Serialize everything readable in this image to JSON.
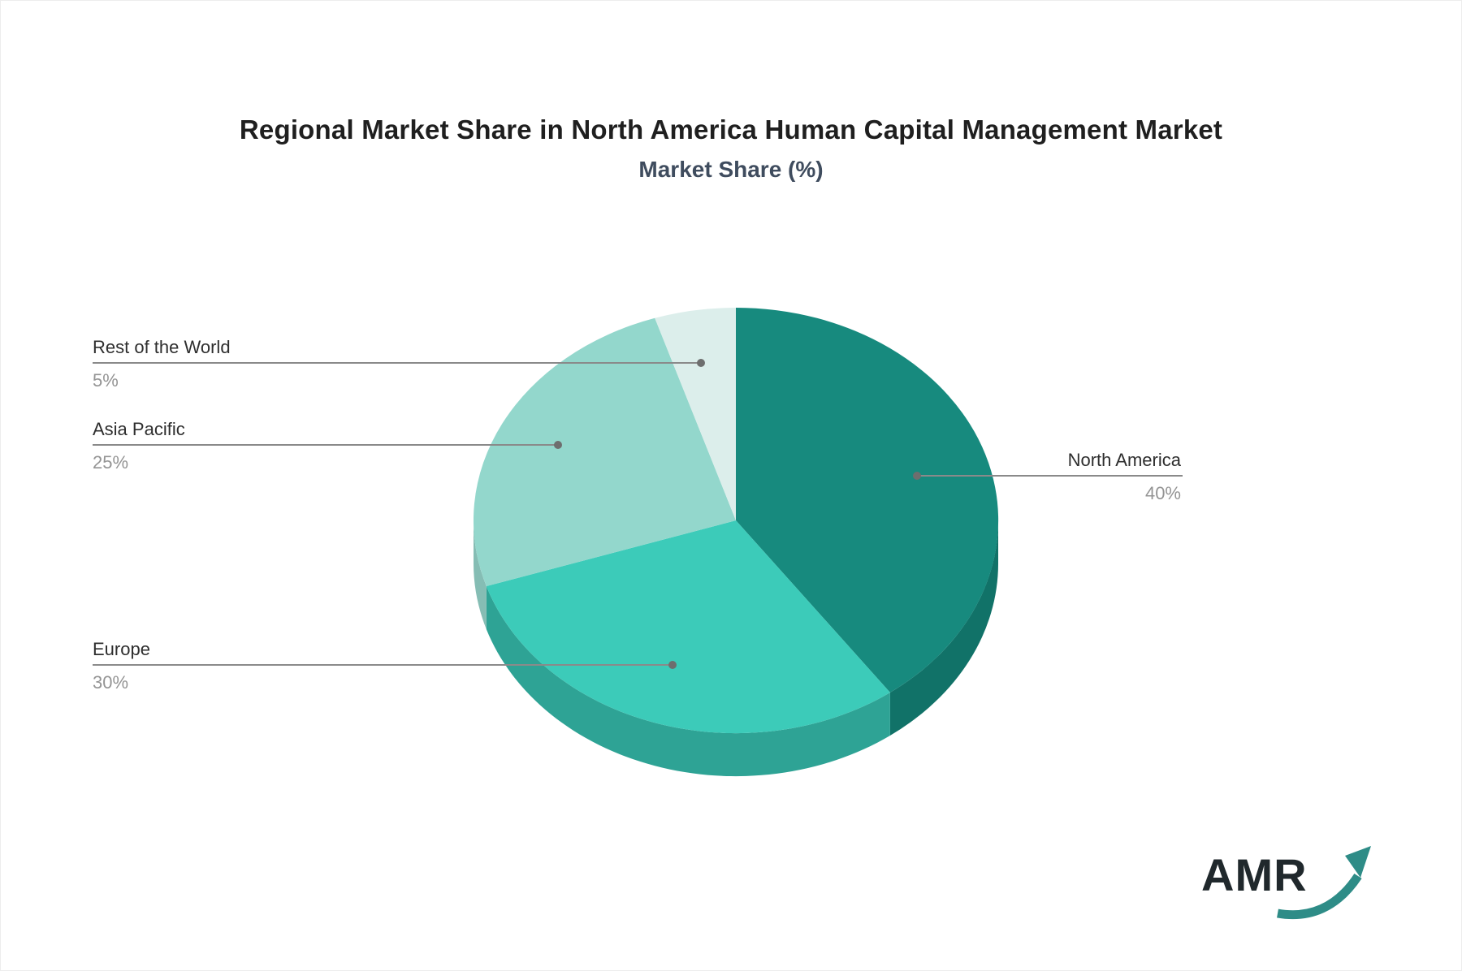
{
  "header": {
    "title": "Regional Market Share in North America Human Capital Management Market",
    "subtitle": "Market Share (%)"
  },
  "chart_data": {
    "type": "pie",
    "title": "Regional Market Share in North America Human Capital Management Market",
    "subtitle": "Market Share (%)",
    "unit": "percent",
    "effect": "3d",
    "direction": "clockwise",
    "start_angle_deg": 0,
    "legend_position": "callout-labels",
    "series": [
      {
        "name": "North America",
        "value": 40,
        "label": "40%",
        "color": "#178a7e",
        "side_color": "#117268"
      },
      {
        "name": "Europe",
        "value": 30,
        "label": "30%",
        "color": "#3ccbb9",
        "side_color": "#2ea395"
      },
      {
        "name": "Asia Pacific",
        "value": 25,
        "label": "25%",
        "color": "#93d7cc",
        "side_color": "#85bdb4"
      },
      {
        "name": "Rest of the World",
        "value": 5,
        "label": "5%",
        "color": "#dceeeb",
        "side_color": "#c2dbd7"
      }
    ],
    "callout_line_color": "#8a8a8a",
    "callout_dot_color": "#6e6e6e"
  },
  "logo": {
    "text": "AMR",
    "arrow_icon_color": "#2e8c87"
  }
}
